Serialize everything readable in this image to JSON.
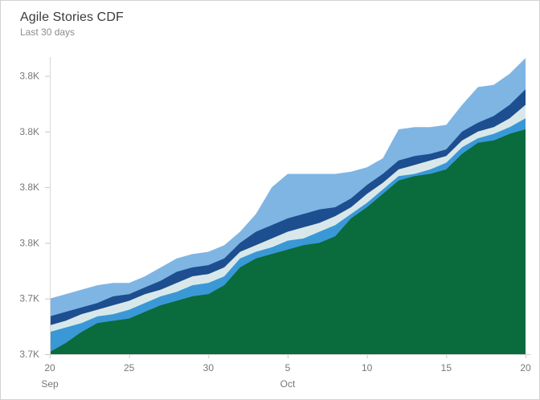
{
  "card": {
    "title": "Agile Stories CDF",
    "subtitle": "Last 30 days"
  },
  "chart_data": {
    "type": "area",
    "title": "Agile Stories CDF",
    "subtitle": "Last 30 days",
    "x": [
      "Sep 20",
      "Sep 21",
      "Sep 22",
      "Sep 23",
      "Sep 24",
      "Sep 25",
      "Sep 26",
      "Sep 27",
      "Sep 28",
      "Sep 29",
      "Sep 30",
      "Oct 1",
      "Oct 2",
      "Oct 3",
      "Oct 4",
      "Oct 5",
      "Oct 6",
      "Oct 7",
      "Oct 8",
      "Oct 9",
      "Oct 10",
      "Oct 11",
      "Oct 12",
      "Oct 13",
      "Oct 14",
      "Oct 15",
      "Oct 16",
      "Oct 17",
      "Oct 18",
      "Oct 19",
      "Oct 20"
    ],
    "x_axis": {
      "tick_day_indices": [
        0,
        5,
        10,
        15,
        20,
        25,
        30
      ],
      "tick_labels": [
        "20",
        "25",
        "30",
        "5",
        "10",
        "15",
        "20"
      ],
      "month_labels": [
        {
          "day_index": 0,
          "label": "Sep"
        },
        {
          "day_index": 15,
          "label": "Oct"
        }
      ]
    },
    "y_axis": {
      "tick_values": [
        3700,
        3725,
        3750,
        3775,
        3800,
        3825
      ],
      "tick_labels": [
        "3.7K",
        "3.7K",
        "3.8K",
        "3.8K",
        "3.8K",
        "3.8K"
      ],
      "ylim": [
        3700,
        3833
      ]
    },
    "series": [
      {
        "name": "series-1-sky-blue",
        "color": "#7FB5E3",
        "values": [
          3725,
          3727,
          3729,
          3731,
          3732,
          3732,
          3735,
          3739,
          3743,
          3745,
          3746,
          3749,
          3755,
          3763,
          3775,
          3781,
          3781,
          3781,
          3781,
          3782,
          3784,
          3788,
          3801,
          3802,
          3802,
          3803,
          3812,
          3820,
          3821,
          3826,
          3833
        ]
      },
      {
        "name": "series-2-dark-blue",
        "color": "#1D4E8F",
        "values": [
          3717,
          3719,
          3721,
          3723,
          3726,
          3727,
          3730,
          3733,
          3737,
          3739,
          3740,
          3743,
          3750,
          3755,
          3758,
          3761,
          3763,
          3765,
          3766,
          3770,
          3776,
          3781,
          3787,
          3789,
          3790,
          3792,
          3800,
          3804,
          3807,
          3812,
          3819
        ]
      },
      {
        "name": "series-3-pale-blue",
        "color": "#D8E8EA",
        "values": [
          3713,
          3715,
          3718,
          3720,
          3722,
          3724,
          3727,
          3729,
          3732,
          3735,
          3736,
          3739,
          3746,
          3749,
          3752,
          3755,
          3757,
          3759,
          3762,
          3766,
          3772,
          3777,
          3783,
          3785,
          3787,
          3789,
          3796,
          3800,
          3802,
          3806,
          3812
        ]
      },
      {
        "name": "series-4-medium-blue",
        "color": "#3B98D6",
        "values": [
          3710,
          3712,
          3714,
          3717,
          3718,
          3720,
          3723,
          3726,
          3728,
          3731,
          3732,
          3735,
          3743,
          3746,
          3748,
          3751,
          3752,
          3755,
          3758,
          3763,
          3768,
          3774,
          3780,
          3781,
          3783,
          3786,
          3793,
          3797,
          3799,
          3802,
          3806
        ]
      },
      {
        "name": "series-5-green",
        "color": "#0A6B3C",
        "values": [
          3701,
          3705,
          3710,
          3714,
          3715,
          3716,
          3719,
          3722,
          3724,
          3726,
          3727,
          3731,
          3739,
          3743,
          3745,
          3747,
          3749,
          3750,
          3753,
          3761,
          3766,
          3772,
          3778,
          3780,
          3781,
          3783,
          3790,
          3795,
          3796,
          3799,
          3801
        ]
      }
    ],
    "layout": {
      "legend": "none",
      "grid": "off",
      "paint_order": "series listed first is painted first; later series painted on top",
      "area_baseline": 3700,
      "axis_line_color": "#D8D8D8",
      "tick_color": "#C9C9C9",
      "label_color": "#777776"
    }
  }
}
